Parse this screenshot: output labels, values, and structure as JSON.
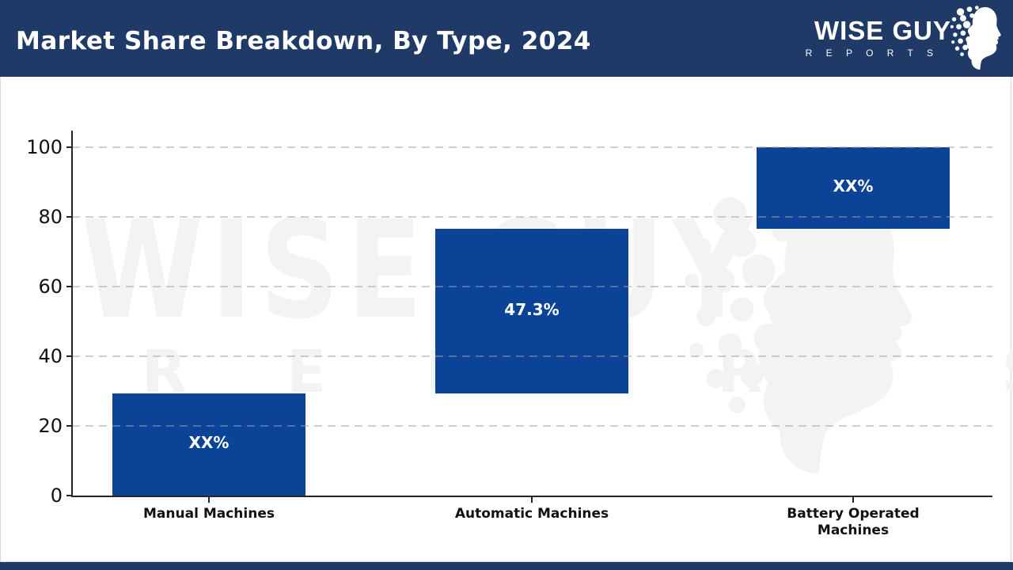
{
  "header": {
    "title": "Market Share Breakdown, By Type, 2024",
    "logo": {
      "line1": "WISE GUY",
      "line2": "R E P O R T S"
    }
  },
  "watermark": {
    "line1": "WISE GUY",
    "line2": "R E P O R T S"
  },
  "colors": {
    "header_bg": "#203a68",
    "bar": "#0b4397",
    "axis": "#262626",
    "grid": "rgba(160,160,160,0.5)",
    "watermark": "#f3f3f3",
    "bar_label_text": "#ffffff",
    "tick_label_text": "#111111"
  },
  "chart_data": {
    "type": "bar",
    "subtype": "stacked-waterfall",
    "title": "Market Share Breakdown, By Type, 2024",
    "categories": [
      "Manual Machines",
      "Automatic Machines",
      "Battery Operated\nMachines"
    ],
    "segments": [
      {
        "category": "Manual Machines",
        "start": 0,
        "end": 29.4,
        "label": "XX%"
      },
      {
        "category": "Automatic Machines",
        "start": 29.4,
        "end": 76.7,
        "value": 47.3,
        "label": "47.3%"
      },
      {
        "category": "Battery Operated Machines",
        "start": 76.7,
        "end": 100,
        "label": "XX%"
      }
    ],
    "xlabel": "",
    "ylabel": "",
    "ylim": [
      0,
      100
    ],
    "yticks": [
      0,
      20,
      40,
      60,
      80,
      100
    ],
    "grid": "horizontal-dashed",
    "legend": false
  }
}
